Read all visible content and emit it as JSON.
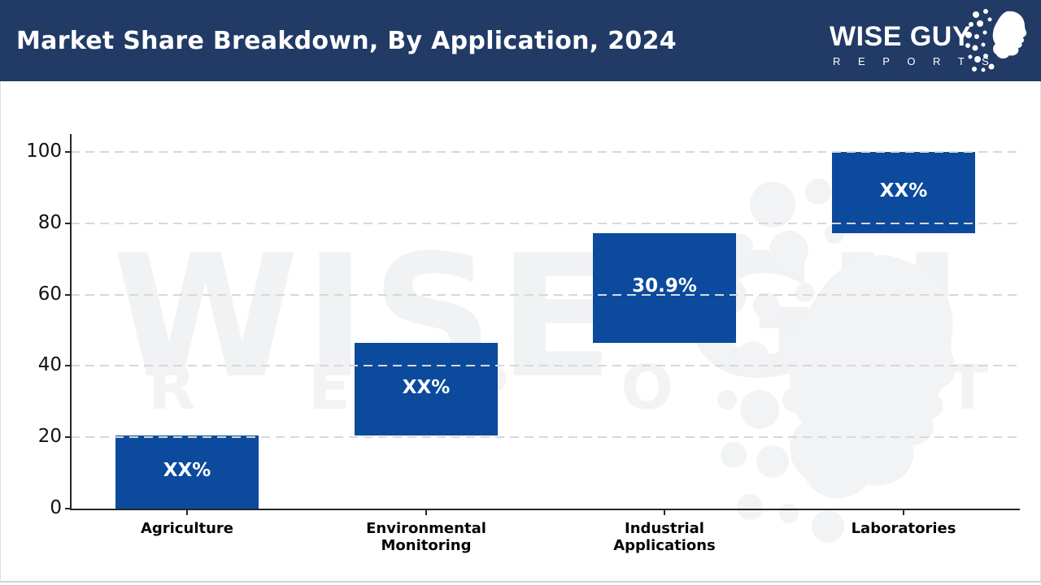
{
  "header": {
    "title": "Market Share Breakdown, By Application, 2024",
    "logo": {
      "line1": "WISE GUY",
      "line2": "R E P O R T S"
    }
  },
  "watermark": {
    "line1": "WISE GU",
    "line2": "R E P O R T S"
  },
  "colors": {
    "header_bg": "#213a66",
    "bar": "#0c4a9e",
    "bar_label": "#ffffff",
    "axis": "#262626",
    "gridline": "#d8d8d8",
    "tick_text": "#111111",
    "watermark": "#f1f2f4"
  },
  "chart_data": {
    "type": "bar",
    "subtype": "waterfall",
    "title": "Market Share Breakdown, By Application, 2024",
    "xlabel": "",
    "ylabel": "",
    "ylim": [
      0,
      105
    ],
    "yticks": [
      0,
      20,
      40,
      60,
      80,
      100
    ],
    "grid": "horizontal dashed, drawn above bars",
    "legend": "none",
    "categories": [
      "Agriculture",
      "Environmental Monitoring",
      "Industrial Applications",
      "Laboratories"
    ],
    "bars": [
      {
        "category": "Agriculture",
        "start": 0,
        "end": 20.5,
        "value": 20.5,
        "display_label": "XX%"
      },
      {
        "category": "Environmental Monitoring",
        "start": 20.5,
        "end": 46.4,
        "value": 25.9,
        "display_label": "XX%"
      },
      {
        "category": "Industrial Applications",
        "start": 46.4,
        "end": 77.3,
        "value": 30.9,
        "display_label": "30.9%"
      },
      {
        "category": "Laboratories",
        "start": 77.3,
        "end": 100,
        "value": 22.7,
        "display_label": "XX%"
      }
    ]
  }
}
